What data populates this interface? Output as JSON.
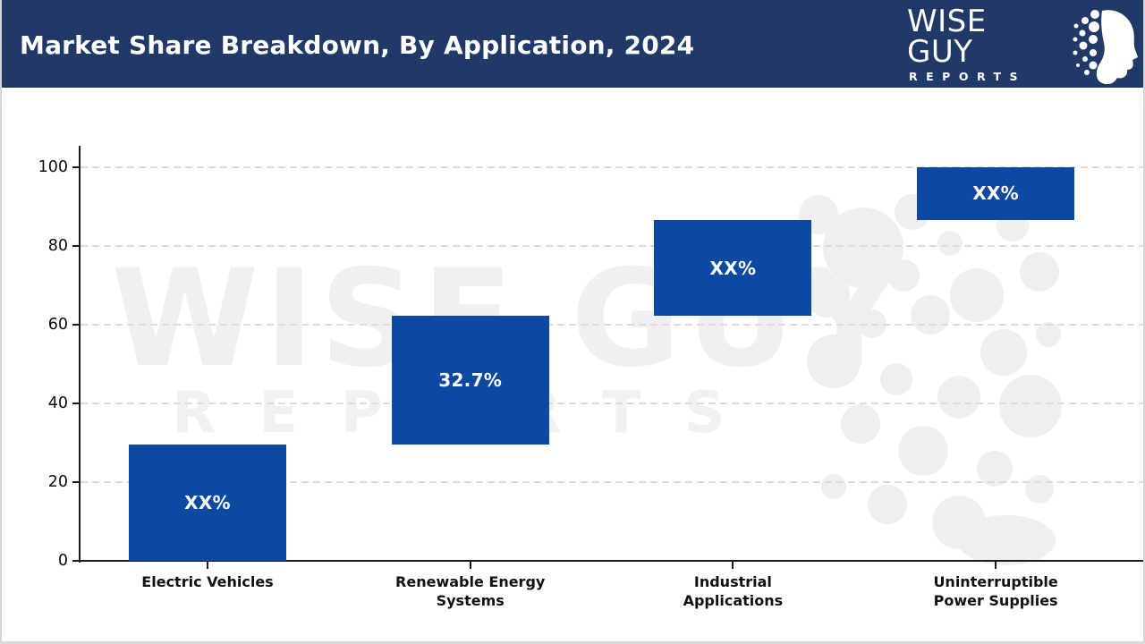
{
  "header": {
    "title": "Market Share Breakdown, By Application, 2024",
    "brand": {
      "line1": "WISE GUY",
      "line2": "REPORTS"
    }
  },
  "watermark": {
    "line1": "WISE GUY",
    "line2": "REPORTS"
  },
  "chart_data": {
    "type": "bar",
    "subtype": "waterfall",
    "title": "Market Share Breakdown, By Application, 2024",
    "categories": [
      [
        "Electric Vehicles"
      ],
      [
        "Renewable Energy",
        "Systems"
      ],
      [
        "Industrial",
        "Applications"
      ],
      [
        "Uninterruptible",
        "Power Supplies"
      ]
    ],
    "segments": [
      {
        "label": "XX%",
        "start": 0,
        "end": 29.5
      },
      {
        "label": "32.7%",
        "start": 29.5,
        "end": 62.2
      },
      {
        "label": "XX%",
        "start": 62.2,
        "end": 86.6
      },
      {
        "label": "XX%",
        "start": 86.6,
        "end": 100
      }
    ],
    "yticks": [
      0,
      20,
      40,
      60,
      80,
      100
    ],
    "ylim": [
      0,
      105
    ],
    "xlabel": "",
    "ylabel": "",
    "grid": "dashed-horizontal",
    "legend": "none",
    "colors": {
      "bar": "#0d49a0",
      "bar_label": "#ffffff",
      "header_bg": "#213966",
      "axis": "#1a1a1a",
      "gridline": "#dcdcdc",
      "watermark": "#f0f0f0"
    }
  }
}
